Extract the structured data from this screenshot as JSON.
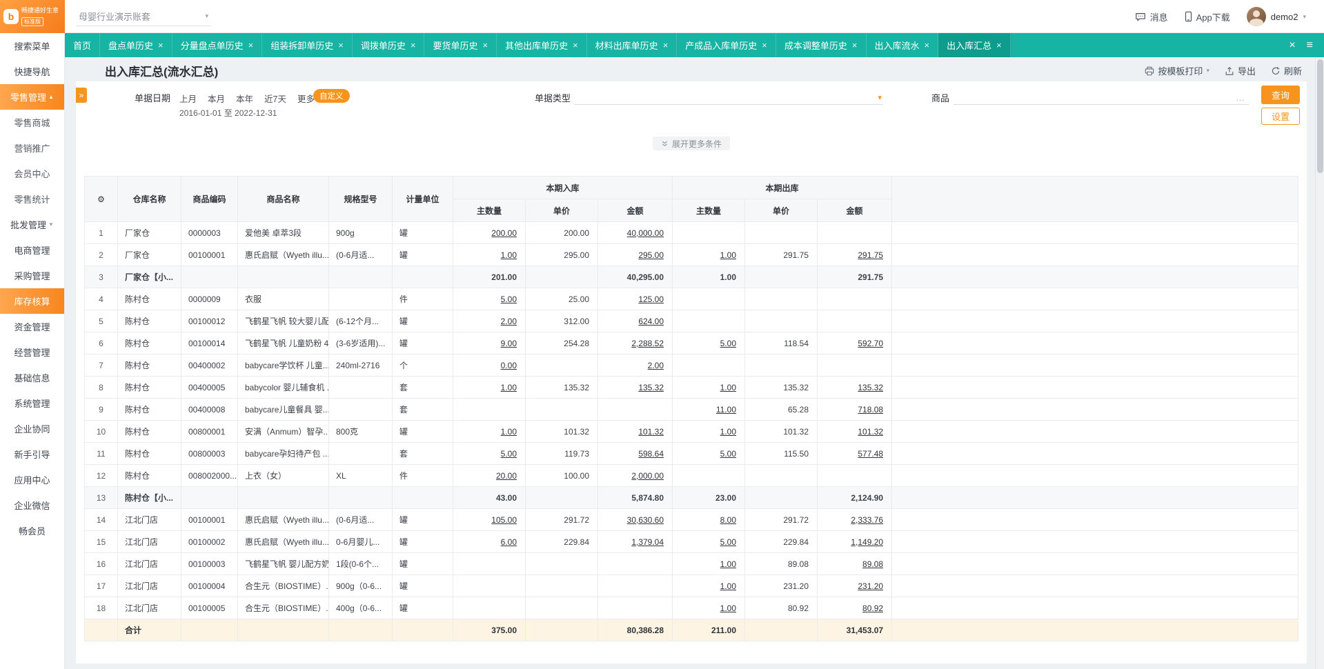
{
  "colors": {
    "accent_orange": "#f7941e",
    "teal": "#17b3a3",
    "teal_dark": "#0e9d8d"
  },
  "icons": {
    "gear": "⚙",
    "close": "×",
    "menu": "≡",
    "collapse": "»",
    "caret_down": "▾",
    "caret_up": "▲",
    "caret_down_solid": "▼",
    "ellipsis": "…"
  },
  "topbar": {
    "logo_title": "畅捷通好生意",
    "logo_badge": "标准版",
    "account_name": "母婴行业演示账套",
    "messages": "消息",
    "app_download": "App下载",
    "username": "demo2"
  },
  "tabs": [
    {
      "label": "首页",
      "closable": false,
      "active": false
    },
    {
      "label": "盘点单历史",
      "closable": true,
      "active": false
    },
    {
      "label": "分量盘点单历史",
      "closable": true,
      "active": false
    },
    {
      "label": "组装拆卸单历史",
      "closable": true,
      "active": false
    },
    {
      "label": "调拨单历史",
      "closable": true,
      "active": false
    },
    {
      "label": "要货单历史",
      "closable": true,
      "active": false
    },
    {
      "label": "其他出库单历史",
      "closable": true,
      "active": false
    },
    {
      "label": "材料出库单历史",
      "closable": true,
      "active": false
    },
    {
      "label": "产成品入库单历史",
      "closable": true,
      "active": false
    },
    {
      "label": "成本调整单历史",
      "closable": true,
      "active": false
    },
    {
      "label": "出入库流水",
      "closable": true,
      "active": false
    },
    {
      "label": "出入库汇总",
      "closable": true,
      "active": true
    }
  ],
  "sidebar": [
    {
      "label": "搜索菜单",
      "type": "plain"
    },
    {
      "label": "快捷导航",
      "type": "plain"
    },
    {
      "label": "零售管理",
      "type": "group-open"
    },
    {
      "label": "零售商城",
      "type": "sub"
    },
    {
      "label": "营销推广",
      "type": "sub"
    },
    {
      "label": "会员中心",
      "type": "sub"
    },
    {
      "label": "零售统计",
      "type": "sub"
    },
    {
      "label": "批发管理",
      "type": "group-closed"
    },
    {
      "label": "电商管理",
      "type": "plain"
    },
    {
      "label": "采购管理",
      "type": "plain"
    },
    {
      "label": "库存核算",
      "type": "active"
    },
    {
      "label": "资金管理",
      "type": "plain"
    },
    {
      "label": "经营管理",
      "type": "plain"
    },
    {
      "label": "基础信息",
      "type": "plain"
    },
    {
      "label": "系统管理",
      "type": "plain"
    },
    {
      "label": "企业协同",
      "type": "plain"
    },
    {
      "label": "新手引导",
      "type": "plain"
    },
    {
      "label": "应用中心",
      "type": "plain"
    },
    {
      "label": "企业微信",
      "type": "plain"
    },
    {
      "label": "畅会员",
      "type": "plain"
    }
  ],
  "page": {
    "title": "出入库汇总(流水汇总)",
    "print": "按模板打印",
    "export": "导出",
    "refresh": "刷新"
  },
  "filters": {
    "date_label": "单据日期",
    "quick_links": [
      "上月",
      "本月",
      "本年",
      "近7天",
      "更多"
    ],
    "custom_badge": "自定义",
    "date_range": "2016-01-01 至 2022-12-31",
    "doc_type_label": "单据类型",
    "product_label": "商品",
    "query_button": "查询",
    "settings_button": "设置",
    "expand_more": "展开更多条件"
  },
  "table": {
    "header": {
      "warehouse": "仓库名称",
      "code": "商品编码",
      "name": "商品名称",
      "spec": "规格型号",
      "unit": "计量单位",
      "in_group": "本期入库",
      "out_group": "本期出库",
      "qty": "主数量",
      "price": "单价",
      "amount": "金额"
    },
    "rows": [
      {
        "no": "1",
        "type": "normal",
        "warehouse": "厂家仓",
        "code": "0000003",
        "name": "爱他美 卓萃3段",
        "spec": "900g",
        "unit": "罐",
        "in_qty": "200.00",
        "in_price": "200.00",
        "in_amount": "40,000.00",
        "out_qty": "",
        "out_price": "",
        "out_amount": ""
      },
      {
        "no": "2",
        "type": "normal",
        "warehouse": "厂家仓",
        "code": "00100001",
        "name": "惠氏启赋（Wyeth illu...",
        "spec": "(0-6月适...",
        "unit": "罐",
        "in_qty": "1.00",
        "in_price": "295.00",
        "in_amount": "295.00",
        "out_qty": "1.00",
        "out_price": "291.75",
        "out_amount": "291.75"
      },
      {
        "no": "3",
        "type": "subtotal",
        "warehouse": "厂家仓【小...",
        "code": "",
        "name": "",
        "spec": "",
        "unit": "",
        "in_qty": "201.00",
        "in_price": "",
        "in_amount": "40,295.00",
        "out_qty": "1.00",
        "out_price": "",
        "out_amount": "291.75"
      },
      {
        "no": "4",
        "type": "normal",
        "warehouse": "陈村仓",
        "code": "0000009",
        "name": "衣服",
        "spec": "",
        "unit": "件",
        "in_qty": "5.00",
        "in_price": "25.00",
        "in_amount": "125.00",
        "out_qty": "",
        "out_price": "",
        "out_amount": ""
      },
      {
        "no": "5",
        "type": "normal",
        "warehouse": "陈村仓",
        "code": "00100012",
        "name": "飞鹤星飞帆 较大婴儿配...",
        "spec": "(6-12个月...",
        "unit": "罐",
        "in_qty": "2.00",
        "in_price": "312.00",
        "in_amount": "624.00",
        "out_qty": "",
        "out_price": "",
        "out_amount": ""
      },
      {
        "no": "6",
        "type": "normal",
        "warehouse": "陈村仓",
        "code": "00100014",
        "name": "飞鹤星飞帆 儿童奶粉 4...",
        "spec": "(3-6岁适用)...",
        "unit": "罐",
        "in_qty": "9.00",
        "in_price": "254.28",
        "in_amount": "2,288.52",
        "out_qty": "5.00",
        "out_price": "118.54",
        "out_amount": "592.70"
      },
      {
        "no": "7",
        "type": "normal",
        "warehouse": "陈村仓",
        "code": "00400002",
        "name": "babycare学饮杯 儿童...",
        "spec": "240ml-2716",
        "unit": "个",
        "in_qty": "0.00",
        "in_price": "",
        "in_amount": "2.00",
        "out_qty": "",
        "out_price": "",
        "out_amount": ""
      },
      {
        "no": "8",
        "type": "normal",
        "warehouse": "陈村仓",
        "code": "00400005",
        "name": "babycolor 婴儿辅食机 ...",
        "spec": "",
        "unit": "套",
        "in_qty": "1.00",
        "in_price": "135.32",
        "in_amount": "135.32",
        "out_qty": "1.00",
        "out_price": "135.32",
        "out_amount": "135.32"
      },
      {
        "no": "9",
        "type": "normal",
        "warehouse": "陈村仓",
        "code": "00400008",
        "name": "babycare儿童餐具 婴...",
        "spec": "",
        "unit": "套",
        "in_qty": "",
        "in_price": "",
        "in_amount": "",
        "out_qty": "11.00",
        "out_price": "65.28",
        "out_amount": "718.08"
      },
      {
        "no": "10",
        "type": "normal",
        "warehouse": "陈村仓",
        "code": "00800001",
        "name": "安满（Anmum）智孕...",
        "spec": "800克",
        "unit": "罐",
        "in_qty": "1.00",
        "in_price": "101.32",
        "in_amount": "101.32",
        "out_qty": "1.00",
        "out_price": "101.32",
        "out_amount": "101.32"
      },
      {
        "no": "11",
        "type": "normal",
        "warehouse": "陈村仓",
        "code": "00800003",
        "name": "babycare孕妇待产包 ...",
        "spec": "",
        "unit": "套",
        "in_qty": "5.00",
        "in_price": "119.73",
        "in_amount": "598.64",
        "out_qty": "5.00",
        "out_price": "115.50",
        "out_amount": "577.48"
      },
      {
        "no": "12",
        "type": "normal",
        "warehouse": "陈村仓",
        "code": "008002000...",
        "name": "上衣（女）",
        "spec": "XL",
        "unit": "件",
        "in_qty": "20.00",
        "in_price": "100.00",
        "in_amount": "2,000.00",
        "out_qty": "",
        "out_price": "",
        "out_amount": ""
      },
      {
        "no": "13",
        "type": "subtotal",
        "warehouse": "陈村仓【小...",
        "code": "",
        "name": "",
        "spec": "",
        "unit": "",
        "in_qty": "43.00",
        "in_price": "",
        "in_amount": "5,874.80",
        "out_qty": "23.00",
        "out_price": "",
        "out_amount": "2,124.90"
      },
      {
        "no": "14",
        "type": "normal",
        "warehouse": "江北门店",
        "code": "00100001",
        "name": "惠氏启赋（Wyeth illu...",
        "spec": "(0-6月适...",
        "unit": "罐",
        "in_qty": "105.00",
        "in_price": "291.72",
        "in_amount": "30,630.60",
        "out_qty": "8.00",
        "out_price": "291.72",
        "out_amount": "2,333.76"
      },
      {
        "no": "15",
        "type": "normal",
        "warehouse": "江北门店",
        "code": "00100002",
        "name": "惠氏启赋（Wyeth illu...",
        "spec": "0-6月婴儿...",
        "unit": "罐",
        "in_qty": "6.00",
        "in_price": "229.84",
        "in_amount": "1,379.04",
        "out_qty": "5.00",
        "out_price": "229.84",
        "out_amount": "1,149.20"
      },
      {
        "no": "16",
        "type": "normal",
        "warehouse": "江北门店",
        "code": "00100003",
        "name": "飞鹤星飞帆 婴儿配方奶...",
        "spec": "1段(0-6个...",
        "unit": "罐",
        "in_qty": "",
        "in_price": "",
        "in_amount": "",
        "out_qty": "1.00",
        "out_price": "89.08",
        "out_amount": "89.08"
      },
      {
        "no": "17",
        "type": "normal",
        "warehouse": "江北门店",
        "code": "00100004",
        "name": "合生元（BIOSTIME）...",
        "spec": "900g（0-6...",
        "unit": "罐",
        "in_qty": "",
        "in_price": "",
        "in_amount": "",
        "out_qty": "1.00",
        "out_price": "231.20",
        "out_amount": "231.20"
      },
      {
        "no": "18",
        "type": "normal",
        "warehouse": "江北门店",
        "code": "00100005",
        "name": "合生元（BIOSTIME）...",
        "spec": "400g（0-6...",
        "unit": "罐",
        "in_qty": "",
        "in_price": "",
        "in_amount": "",
        "out_qty": "1.00",
        "out_price": "80.92",
        "out_amount": "80.92"
      }
    ],
    "total": {
      "label": "合计",
      "in_qty": "375.00",
      "in_amount": "80,386.28",
      "out_qty": "211.00",
      "out_amount": "31,453.07"
    }
  }
}
